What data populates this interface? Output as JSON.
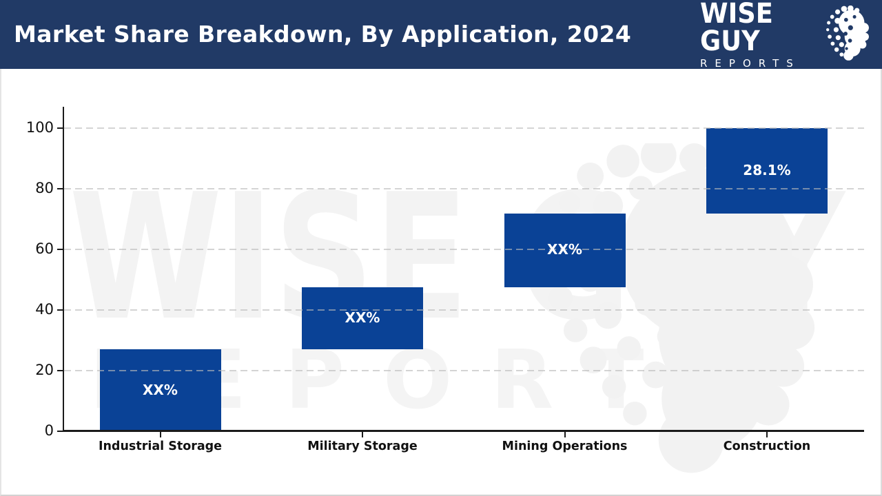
{
  "header": {
    "title": "Market Share Breakdown, By Application, 2024",
    "logo": {
      "line1": "WISE GUY",
      "line2": "REPORTS"
    }
  },
  "icons": {
    "logo_head": "dotted-head-profile-icon",
    "watermark_head": "dotted-head-profile-watermark"
  },
  "colors": {
    "header_bg": "#213a66",
    "bar_fill": "#0a4296",
    "bar_label_text": "#ffffff",
    "axis": "#1a1a1a",
    "gridline": "#d9d9d9",
    "watermark": "#f3f3f3"
  },
  "watermark": {
    "line1": "WISE GUY",
    "line2": "REPORTS"
  },
  "chart_data": {
    "type": "bar",
    "subtype": "floating-waterfall",
    "title": "Market Share Breakdown, By Application, 2024",
    "categories": [
      "Industrial Storage",
      "Military Storage",
      "Mining Operations",
      "Construction"
    ],
    "series": [
      {
        "name": "Market Share (%)",
        "segments": [
          {
            "category": "Industrial Storage",
            "start": 0,
            "end": 27.0,
            "value_label": "XX%"
          },
          {
            "category": "Military Storage",
            "start": 27.0,
            "end": 47.5,
            "value_label": "XX%"
          },
          {
            "category": "Mining Operations",
            "start": 47.5,
            "end": 71.9,
            "value_label": "XX%"
          },
          {
            "category": "Construction",
            "start": 71.9,
            "end": 100.0,
            "value_label": "28.1%"
          }
        ]
      }
    ],
    "xlabel": "",
    "ylabel": "",
    "ylim": [
      0,
      100
    ],
    "yticks": [
      0,
      20,
      40,
      60,
      80,
      100
    ],
    "grid": "horizontal dashed, drawn over bars",
    "legend": "none"
  }
}
